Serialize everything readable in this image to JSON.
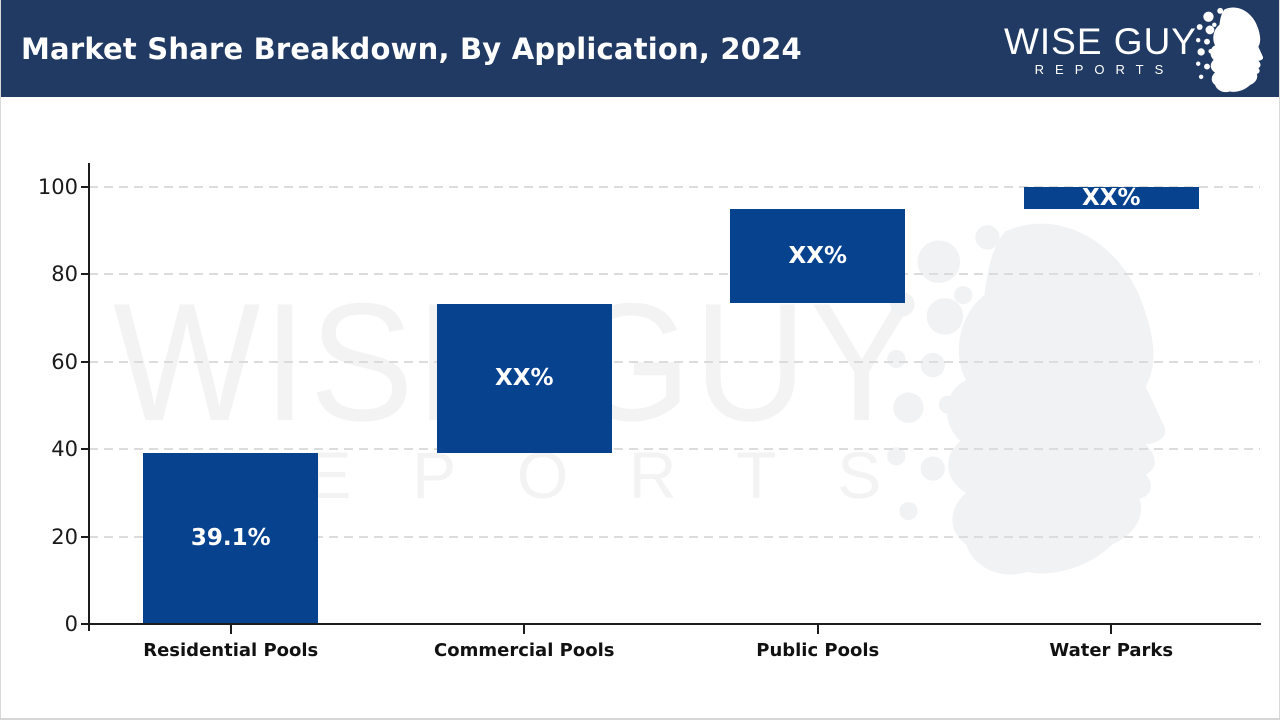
{
  "header": {
    "title": "Market Share Breakdown, By Application, 2024",
    "logo": {
      "line1": "WISE GUY",
      "line2": "REPORTS"
    }
  },
  "watermark": {
    "line1": "WISE GUY",
    "line2": "REPORTS"
  },
  "chart_data": {
    "type": "bar",
    "subtype": "waterfall",
    "title": "Market Share Breakdown, By Application, 2024",
    "categories": [
      "Residential Pools",
      "Commercial Pools",
      "Public Pools",
      "Water Parks"
    ],
    "segments": [
      {
        "category": "Residential Pools",
        "start": 0,
        "end": 39.1,
        "label": "39.1%"
      },
      {
        "category": "Commercial Pools",
        "start": 39.1,
        "end": 73.3,
        "label": "XX%"
      },
      {
        "category": "Public Pools",
        "start": 73.4,
        "end": 94.9,
        "label": "XX%"
      },
      {
        "category": "Water Parks",
        "start": 94.9,
        "end": 100,
        "label": "XX%"
      }
    ],
    "yticks": [
      0,
      20,
      40,
      60,
      80,
      100
    ],
    "ylim": [
      0,
      105
    ],
    "xlabel": "",
    "ylabel": "",
    "grid": "horizontal-dashed",
    "legend": "none",
    "bar_color": "#07428f",
    "bar_label_color": "#ffffff"
  },
  "colors": {
    "header_bg": "#203a63",
    "bar": "#07428f",
    "grid": "#dcdcdc",
    "axis": "#1c1c1c",
    "watermark": "#f3f3f4"
  }
}
